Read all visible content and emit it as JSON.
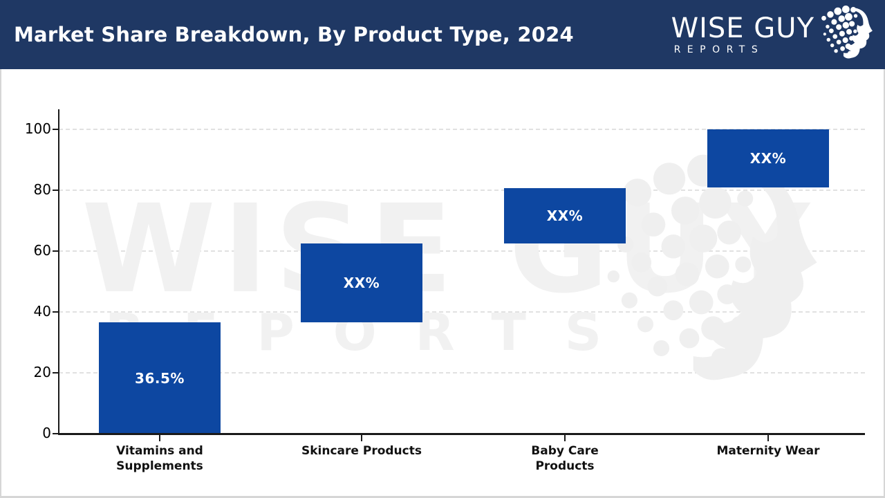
{
  "header": {
    "title": "Market Share Breakdown, By Product Type, 2024",
    "logo_line1": "WISE GUY",
    "logo_line2": "REPORTS"
  },
  "watermark": {
    "line1": "WISE GUY",
    "line2": "REPORTS"
  },
  "colors": {
    "header_bg": "#1f3864",
    "bar": "#0d47a1",
    "axis": "#1a1a1a",
    "gridline": "#e1e1e1",
    "value_label": "#ffffff",
    "watermark": "#f1f1f1"
  },
  "chart_data": {
    "type": "bar",
    "subtype": "waterfall",
    "title": "Market Share Breakdown, By Product Type, 2024",
    "categories": [
      "Vitamins and Supplements",
      "Skincare Products",
      "Baby Care Products",
      "Maternity Wear"
    ],
    "segments": [
      {
        "category": "Vitamins and Supplements",
        "start": 0,
        "end": 36.5,
        "label": "36.5%"
      },
      {
        "category": "Skincare Products",
        "start": 36.5,
        "end": 62.4,
        "label": "XX%"
      },
      {
        "category": "Baby Care Products",
        "start": 62.4,
        "end": 80.6,
        "label": "XX%"
      },
      {
        "category": "Maternity Wear",
        "start": 80.8,
        "end": 100,
        "label": "XX%"
      }
    ],
    "ylim": [
      0,
      100
    ],
    "yticks": [
      0,
      20,
      40,
      60,
      80,
      100
    ],
    "grid": "horizontal-dashed",
    "legend": "none",
    "xlabel": "",
    "ylabel": ""
  }
}
